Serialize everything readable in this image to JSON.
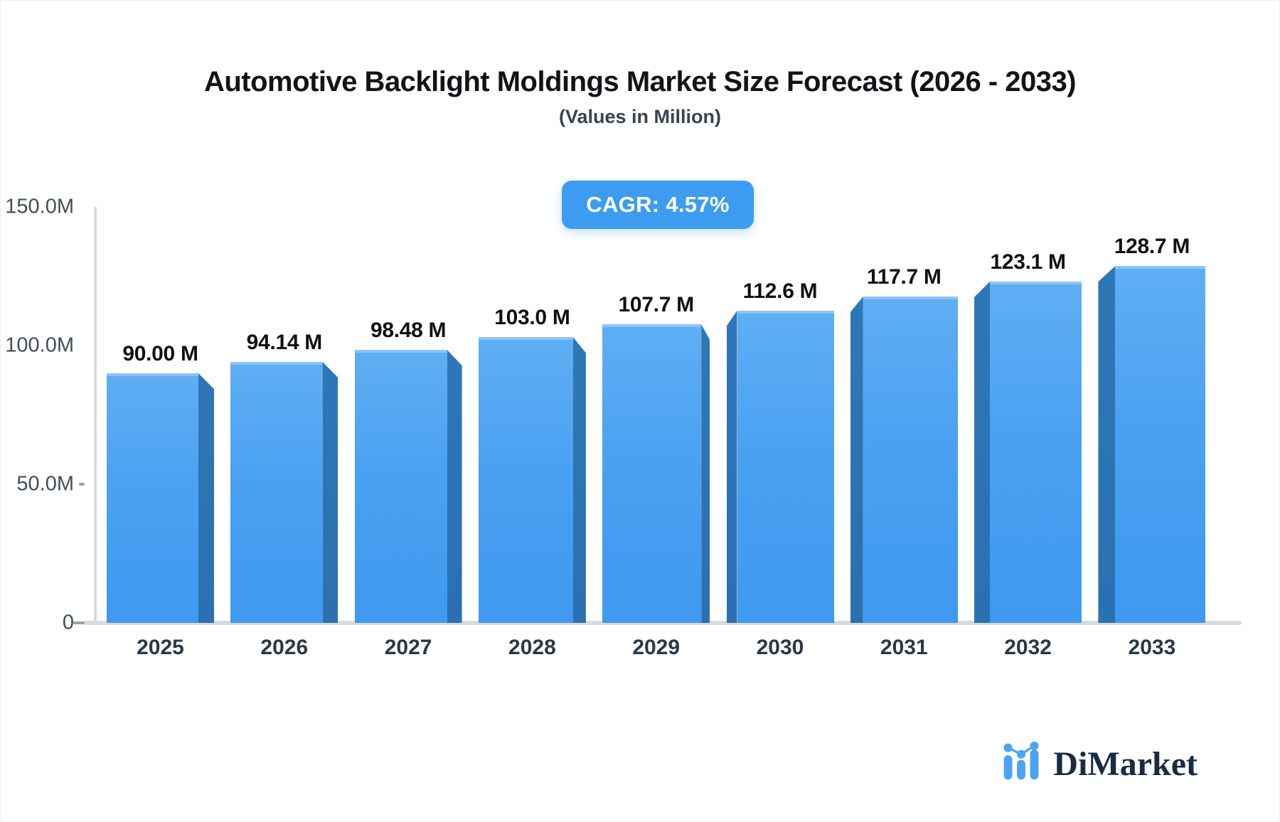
{
  "header": {
    "title": "Automotive Backlight Moldings Market Size Forecast (2026 - 2033)",
    "subtitle": "(Values in Million)"
  },
  "cagr_badge": {
    "label": "CAGR: 4.57%",
    "background": "#3d9cf0",
    "text_color": "#ffffff"
  },
  "chart_data": {
    "type": "bar",
    "title": "Automotive Backlight Moldings Market Size Forecast (2026 - 2033)",
    "subtitle": "(Values in Million)",
    "categories": [
      "2025",
      "2026",
      "2027",
      "2028",
      "2029",
      "2030",
      "2031",
      "2032",
      "2033"
    ],
    "values": [
      90.0,
      94.14,
      98.48,
      103.0,
      107.7,
      112.6,
      117.7,
      123.1,
      128.7
    ],
    "value_labels": [
      "90.00 M",
      "94.14 M",
      "98.48 M",
      "103.0 M",
      "107.7 M",
      "112.6 M",
      "117.7 M",
      "123.1 M",
      "128.7 M"
    ],
    "unit": "Million",
    "ylim": [
      0,
      150
    ],
    "yticks": [
      {
        "label": "150.0M",
        "value": 150
      },
      {
        "label": "100.0M",
        "value": 100
      },
      {
        "label": "50.0M",
        "value": 50
      },
      {
        "label": "0",
        "value": 0
      }
    ],
    "grid": false,
    "legend": false,
    "annotation": "CAGR: 4.57%",
    "bar_face_color": "#4aa1f1",
    "bar_side_color": "#2e77b7",
    "axis_color": "#d7dae0",
    "value_label_color": "#101114",
    "category_label_color": "#2d3845",
    "tick_label_color": "#424d5a"
  },
  "logo": {
    "text": "DiMarket",
    "icon": "mini-bar-chart-icon",
    "icon_color": "#4aa3f5",
    "text_color": "#1b2a44"
  }
}
